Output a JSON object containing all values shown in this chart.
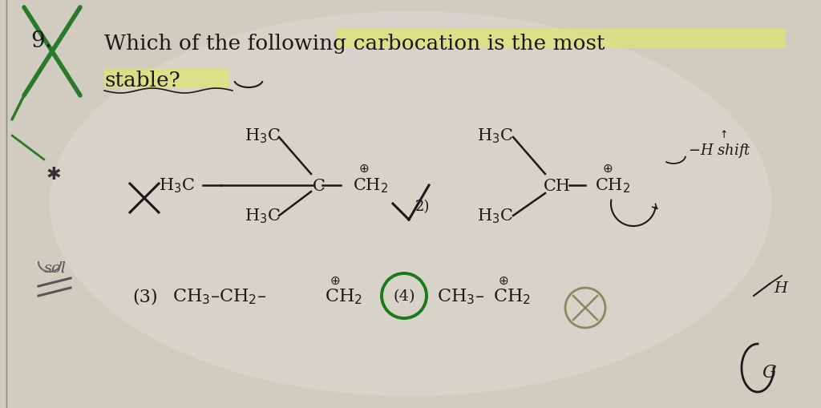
{
  "bg_color": "#c8c5b8",
  "text_color": "#1a1a1a",
  "green_color": "#2a7a2a",
  "title1": "Which of the following carbocation is the most",
  "title2": "stable?",
  "q_num": "9",
  "highlight_yellow": "#d8e840",
  "green_circle_color": "#1a7a1a"
}
